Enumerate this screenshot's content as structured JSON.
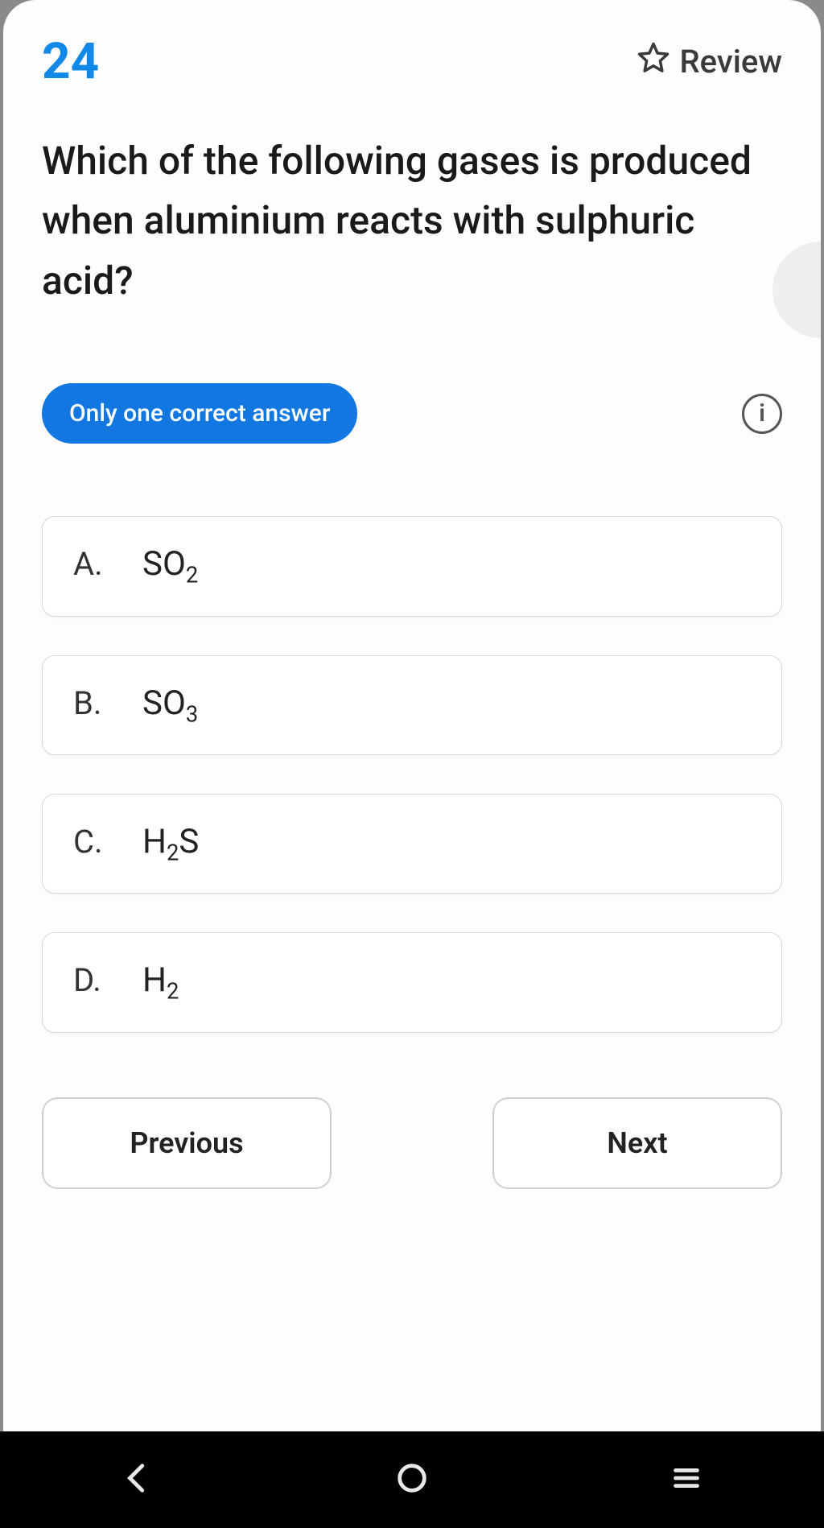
{
  "header": {
    "question_number": "24",
    "review_label": "Review"
  },
  "question": {
    "text": "Which of the following gases is produced when aluminium reacts with sulphuric acid?"
  },
  "hint": {
    "label": "Only one correct answer"
  },
  "options": [
    {
      "letter": "A.",
      "formula_html": "SO<sub>2</sub>"
    },
    {
      "letter": "B.",
      "formula_html": "SO<sub>3</sub>"
    },
    {
      "letter": "C.",
      "formula_html": "H<sub>2</sub>S"
    },
    {
      "letter": "D.",
      "formula_html": "H<sub>2</sub>"
    }
  ],
  "nav": {
    "previous": "Previous",
    "next": "Next"
  },
  "colors": {
    "accent": "#1289e6",
    "pill": "#1277e0",
    "border": "#d8d8d8",
    "text": "#1a1a1a",
    "bg": "#fdfdfd"
  },
  "icons": {
    "star": "star-outline",
    "info": "info-circle",
    "back": "chevron-left",
    "home": "circle-outline",
    "recent": "menu-lines"
  }
}
